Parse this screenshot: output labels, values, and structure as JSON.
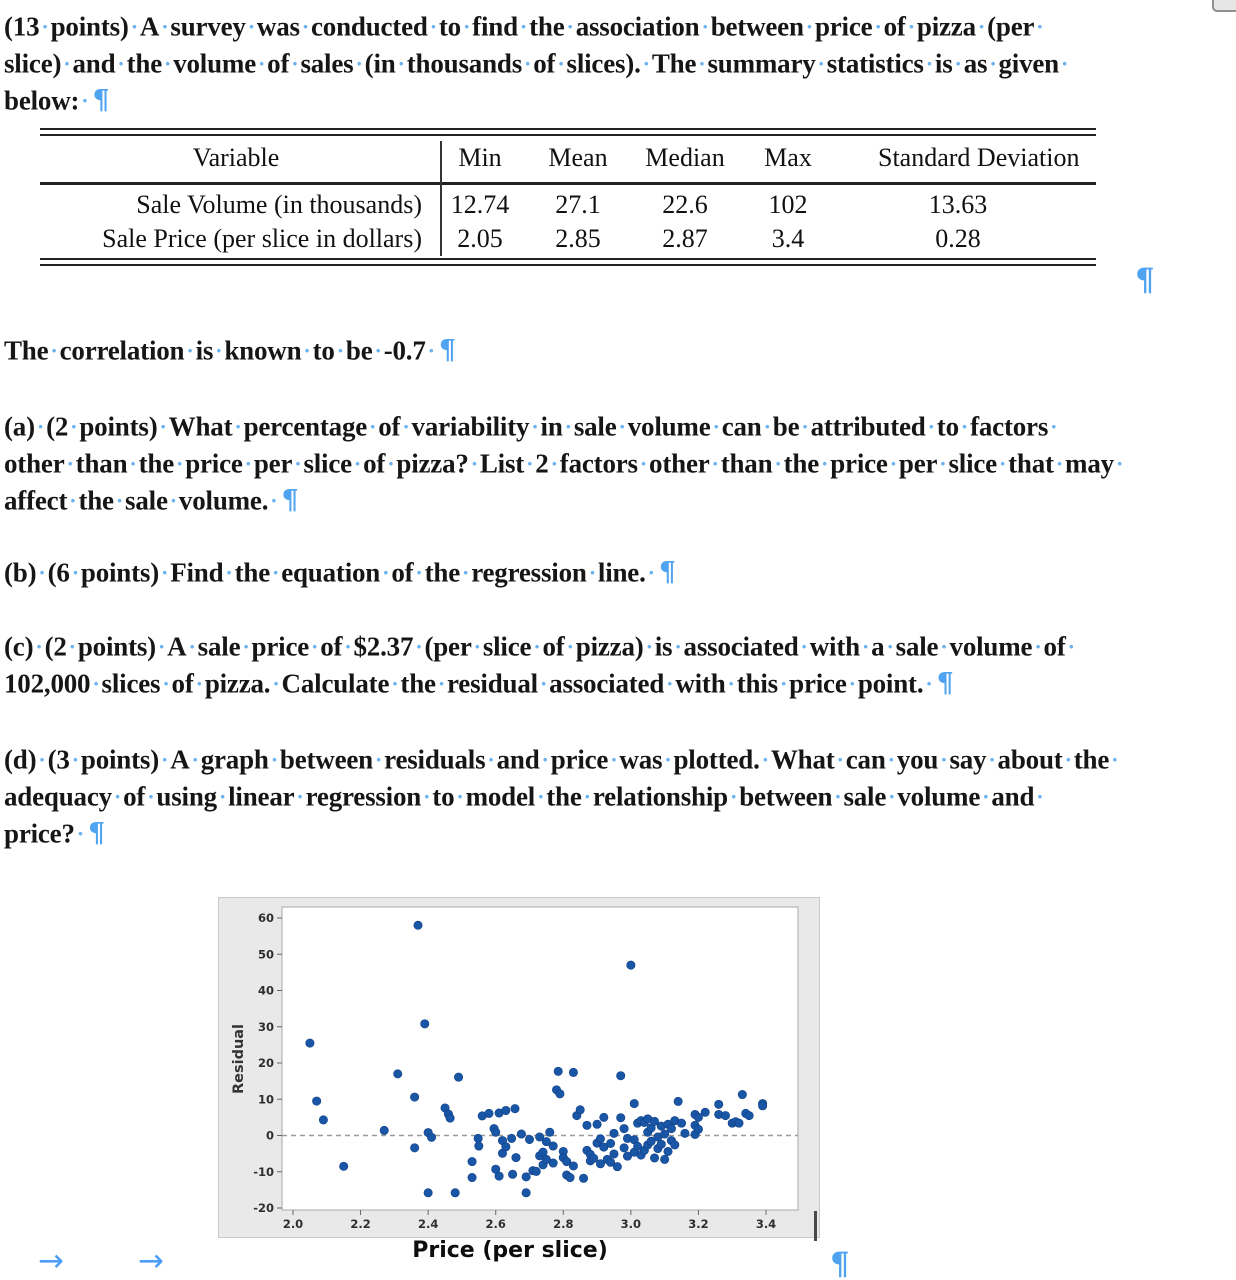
{
  "document": {
    "paragraphs": {
      "intro": {
        "lines": [
          "(13 points) A survey was conducted to find the association between price of pizza (per",
          "slice) and the volume of sales (in thousands of slices). The summary statistics is as given",
          "below:"
        ]
      },
      "correlation": {
        "lines": [
          "The correlation is known to be -0.7"
        ]
      },
      "part_a": {
        "lines": [
          "(a) (2 points) What percentage of variability in sale volume can be attributed to factors",
          "other than the price per slice of pizza? List 2 factors other than the price per slice that may",
          "affect the sale volume."
        ]
      },
      "part_b": {
        "lines": [
          "(b) (6 points) Find the equation of the regression line."
        ]
      },
      "part_c": {
        "lines": [
          "(c) (2 points) A sale price of $2.37 (per slice of pizza) is associated with a sale volume of",
          "102,000 slices of pizza. Calculate the residual associated with this price point."
        ]
      },
      "part_d": {
        "lines": [
          "(d) (3 points) A graph between residuals and price was plotted. What can you say about the",
          "adequacy of using linear regression to model the relationship between sale volume and",
          "price?"
        ]
      }
    },
    "table": {
      "headers": [
        "Variable",
        "Min",
        "Mean",
        "Median",
        "Max",
        "Standard Deviation"
      ],
      "rows": [
        {
          "variable": "Sale Volume (in thousands)",
          "min": "12.74",
          "mean": "27.1",
          "median": "22.6",
          "max": "102",
          "sd": "13.63"
        },
        {
          "variable": "Sale Price (per slice in dollars)",
          "min": "2.05",
          "mean": "2.85",
          "median": "2.87",
          "max": "3.4",
          "sd": "0.28"
        }
      ]
    },
    "formatting_marks": {
      "pilcrow": "¶",
      "space_dot": "·",
      "tab_arrow": "→"
    }
  },
  "chart_data": {
    "type": "scatter",
    "title": "",
    "xlabel": "Price (per slice)",
    "ylabel": "Residual",
    "xlim": [
      1.97,
      3.49
    ],
    "ylim": [
      -20.7,
      63
    ],
    "xticks": [
      "2.0",
      "2.2",
      "2.4",
      "2.6",
      "2.8",
      "3.0",
      "3.2",
      "3.4"
    ],
    "yticks": [
      "60",
      "50",
      "40",
      "30",
      "20",
      "10",
      "0",
      "-10",
      "-20"
    ],
    "zero_line": true,
    "grid": false,
    "legend": false,
    "point_color": "#1a56a6",
    "background_color": "#e9e9e9",
    "plot_background": "#ffffff",
    "points": [
      [
        2.05,
        25.5
      ],
      [
        2.07,
        9.5
      ],
      [
        2.09,
        4.3
      ],
      [
        2.15,
        -8.5
      ],
      [
        2.27,
        1.4
      ],
      [
        2.31,
        17.0
      ],
      [
        2.36,
        10.6
      ],
      [
        2.36,
        -3.4
      ],
      [
        2.37,
        58
      ],
      [
        2.39,
        30.8
      ],
      [
        2.4,
        0.8
      ],
      [
        2.41,
        -0.5
      ],
      [
        2.4,
        -15.8
      ],
      [
        2.45,
        7.6
      ],
      [
        2.46,
        5.9
      ],
      [
        2.465,
        4.8
      ],
      [
        2.48,
        -15.8
      ],
      [
        2.49,
        16.1
      ],
      [
        2.53,
        -7.2
      ],
      [
        2.53,
        -11.6
      ],
      [
        2.548,
        -0.8
      ],
      [
        2.55,
        -2.9
      ],
      [
        2.56,
        5.4
      ],
      [
        2.58,
        6.1
      ],
      [
        2.595,
        1.9
      ],
      [
        2.6,
        0.9
      ],
      [
        2.61,
        6.2
      ],
      [
        2.62,
        -1.4
      ],
      [
        2.63,
        6.9
      ],
      [
        2.647,
        -0.8
      ],
      [
        2.657,
        7.4
      ],
      [
        2.6,
        -9.3
      ],
      [
        2.61,
        -11.2
      ],
      [
        2.62,
        -4.9
      ],
      [
        2.63,
        -3.1
      ],
      [
        2.65,
        -10.7
      ],
      [
        2.66,
        -6.1
      ],
      [
        2.676,
        0.4
      ],
      [
        2.69,
        -15.8
      ],
      [
        2.69,
        -11.4
      ],
      [
        2.7,
        -1.1
      ],
      [
        2.71,
        -9.7
      ],
      [
        2.72,
        -9.9
      ],
      [
        2.73,
        -0.4
      ],
      [
        2.73,
        -5.6
      ],
      [
        2.74,
        -4.6
      ],
      [
        2.74,
        -8.1
      ],
      [
        2.75,
        -6.6
      ],
      [
        2.75,
        -1.7
      ],
      [
        2.76,
        0.9
      ],
      [
        2.77,
        -2.9
      ],
      [
        2.77,
        -7.6
      ],
      [
        2.78,
        12.6
      ],
      [
        2.785,
        17.7
      ],
      [
        2.79,
        11.5
      ],
      [
        2.8,
        -4.4
      ],
      [
        2.8,
        -6.1
      ],
      [
        2.81,
        -7.2
      ],
      [
        2.81,
        -10.9
      ],
      [
        2.82,
        -11.6
      ],
      [
        2.83,
        17.4
      ],
      [
        2.83,
        -8.4
      ],
      [
        2.84,
        5.5
      ],
      [
        2.85,
        7.1
      ],
      [
        2.86,
        -11.8
      ],
      [
        2.87,
        2.8
      ],
      [
        2.87,
        -4.1
      ],
      [
        2.88,
        -5.2
      ],
      [
        2.88,
        -7.0
      ],
      [
        2.89,
        -6.3
      ],
      [
        2.9,
        3.1
      ],
      [
        2.9,
        -2.1
      ],
      [
        2.91,
        -0.9
      ],
      [
        2.91,
        -7.8
      ],
      [
        2.92,
        5.0
      ],
      [
        2.92,
        -3.2
      ],
      [
        2.93,
        -6.6
      ],
      [
        2.94,
        -2.2
      ],
      [
        2.94,
        -7.4
      ],
      [
        2.95,
        0.6
      ],
      [
        2.95,
        -5.1
      ],
      [
        2.96,
        -8.6
      ],
      [
        2.97,
        16.5
      ],
      [
        2.97,
        4.9
      ],
      [
        2.98,
        1.9
      ],
      [
        2.98,
        -3.4
      ],
      [
        2.99,
        -5.7
      ],
      [
        2.99,
        -0.8
      ],
      [
        3.0,
        47
      ],
      [
        3.01,
        8.8
      ],
      [
        3.01,
        -1.2
      ],
      [
        3.01,
        -4.6
      ],
      [
        3.02,
        3.4
      ],
      [
        3.02,
        -3.0
      ],
      [
        3.03,
        4.1
      ],
      [
        3.03,
        -5.4
      ],
      [
        3.04,
        3.6
      ],
      [
        3.04,
        -4.1
      ],
      [
        3.05,
        4.6
      ],
      [
        3.05,
        -2.6
      ],
      [
        3.05,
        0.9
      ],
      [
        3.06,
        2.1
      ],
      [
        3.06,
        -1.6
      ],
      [
        3.07,
        3.9
      ],
      [
        3.07,
        -6.2
      ],
      [
        3.08,
        -0.4
      ],
      [
        3.08,
        -3.6
      ],
      [
        3.09,
        2.6
      ],
      [
        3.09,
        -2.4
      ],
      [
        3.1,
        0.4
      ],
      [
        3.1,
        -6.6
      ],
      [
        3.11,
        3.1
      ],
      [
        3.11,
        -4.4
      ],
      [
        3.12,
        1.9
      ],
      [
        3.12,
        -1.4
      ],
      [
        3.13,
        4.1
      ],
      [
        3.13,
        -2.6
      ],
      [
        3.14,
        9.4
      ],
      [
        3.15,
        3.4
      ],
      [
        3.16,
        0.6
      ],
      [
        3.19,
        5.8
      ],
      [
        3.19,
        2.8
      ],
      [
        3.19,
        0.3
      ],
      [
        3.2,
        5.0
      ],
      [
        3.2,
        1.7
      ],
      [
        3.22,
        6.4
      ],
      [
        3.26,
        8.6
      ],
      [
        3.26,
        5.8
      ],
      [
        3.28,
        5.5
      ],
      [
        3.3,
        3.4
      ],
      [
        3.31,
        3.8
      ],
      [
        3.32,
        3.4
      ],
      [
        3.33,
        11.3
      ],
      [
        3.34,
        6.1
      ],
      [
        3.35,
        5.5
      ],
      [
        3.39,
        8.8
      ],
      [
        3.39,
        8.2
      ]
    ]
  }
}
